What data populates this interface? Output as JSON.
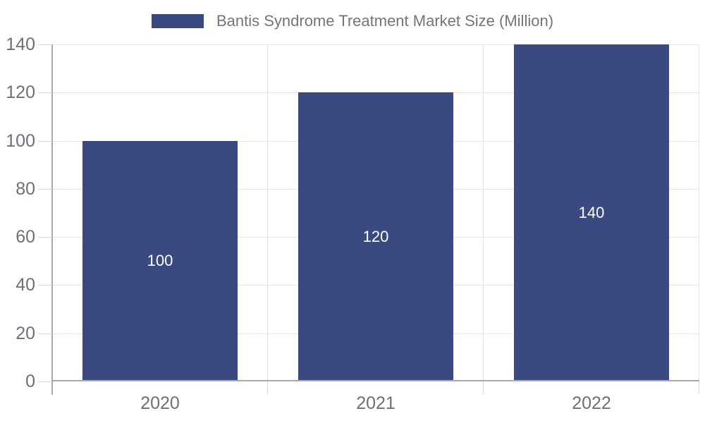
{
  "chart_data": {
    "type": "bar",
    "title": "Bantis Syndrome Treatment Market Size (Million)",
    "categories": [
      "2020",
      "2021",
      "2022"
    ],
    "values": [
      100,
      120,
      140
    ],
    "data_labels": [
      "100",
      "120",
      "140"
    ],
    "xlabel": "",
    "ylabel": "",
    "ylim": [
      0,
      140
    ],
    "yticks": [
      0,
      20,
      40,
      60,
      80,
      100,
      120,
      140
    ],
    "grid": true,
    "legend_position": "top-center",
    "bar_width_fraction": 0.72,
    "colors": {
      "bar": "#3A4A80",
      "data_label": "#FFFFFF",
      "grid_line": "#E6E6E6",
      "axis_line": "#A9A9A9",
      "tick_line": "#D8D8D8",
      "axis_text": "#6E7079",
      "title_text": "#757575",
      "background": "#FFFFFF"
    }
  }
}
